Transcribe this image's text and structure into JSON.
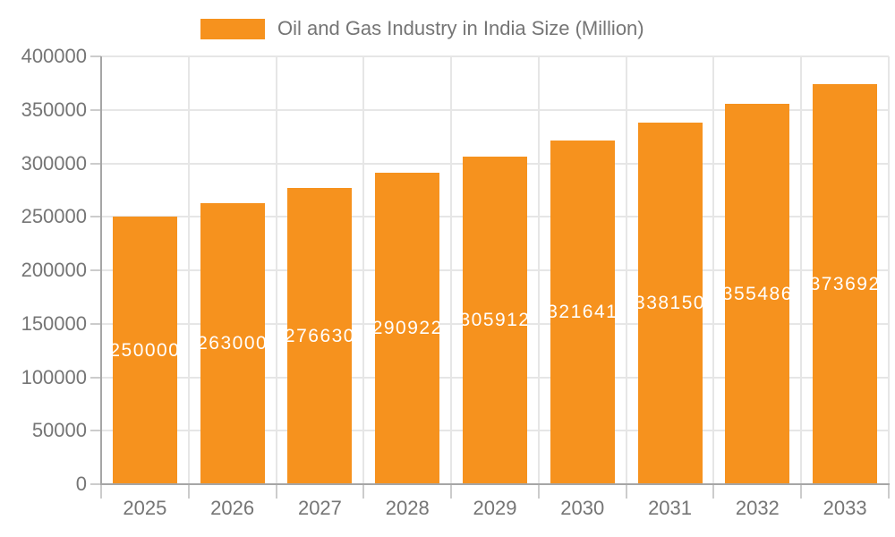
{
  "legend": {
    "label": "Oil and Gas Industry in India Size (Million)"
  },
  "chart_data": {
    "type": "bar",
    "title": "Oil and Gas Industry in India Size (Million)",
    "categories": [
      "2025",
      "2026",
      "2027",
      "2028",
      "2029",
      "2030",
      "2031",
      "2032",
      "2033"
    ],
    "values": [
      250000,
      263000,
      276630,
      290922,
      305912,
      321641,
      338150,
      355486,
      373692
    ],
    "xlabel": "",
    "ylabel": "",
    "ylim": [
      0,
      400000
    ],
    "ytick_step": 50000,
    "ytick_labels": [
      "0",
      "50000",
      "100000",
      "150000",
      "200000",
      "250000",
      "300000",
      "350000",
      "400000"
    ],
    "grid": true,
    "legend_position": "top",
    "value_labels_inside_bars": true
  },
  "colors": {
    "accent": "#F6921E",
    "value_text": "#FFFFFF",
    "axis_text": "#757575",
    "gridline": "#E6E6E6",
    "tick": "#CCCCCC",
    "axis_line": "#A6A6A6",
    "background": "#FFFFFF"
  }
}
